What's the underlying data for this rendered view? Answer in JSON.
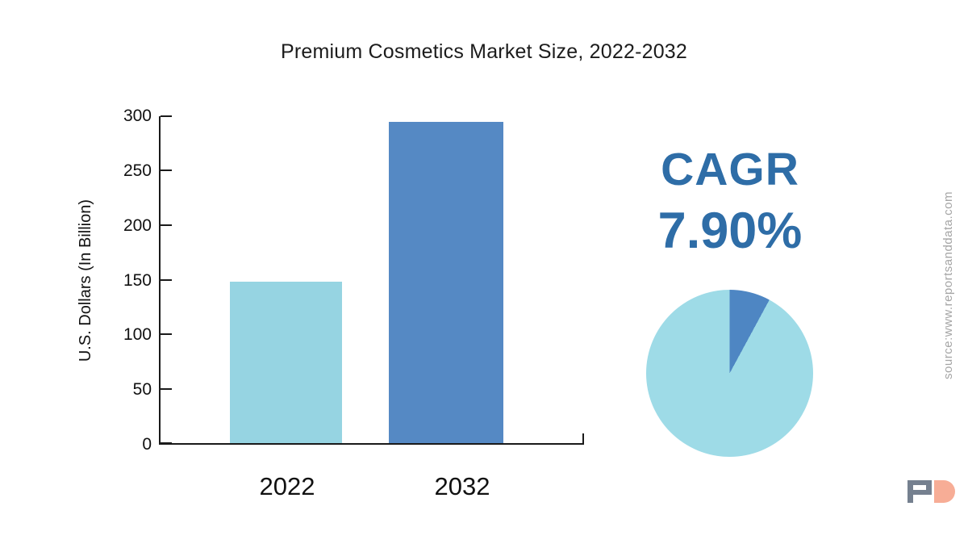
{
  "title": "Premium Cosmetics Market Size, 2022-2032",
  "chart_data": {
    "type": "bar",
    "title": "Premium Cosmetics Market Size, 2022-2032",
    "categories": [
      "2022",
      "2032"
    ],
    "values": [
      148,
      295
    ],
    "bar_colors": [
      "#96d4e2",
      "#5589c4"
    ],
    "xlabel": "",
    "ylabel": "U.S. Dollars (In Billion)",
    "yticks": [
      0,
      50,
      100,
      150,
      200,
      250,
      300
    ],
    "ylim": [
      0,
      300
    ],
    "grid": false,
    "legend": "none"
  },
  "cagr": {
    "label": "CAGR",
    "value_text": "7.90%",
    "percent": 7.9,
    "text_color": "#2e6da7"
  },
  "pie": {
    "type": "pie",
    "slice_percent": 7.9,
    "remainder_percent": 92.1,
    "slice_color": "#4e86c3",
    "remainder_color": "#9edbe7",
    "start_angle_deg": 0
  },
  "source": {
    "text": "source:www.reportsanddata.com"
  },
  "logo": {
    "letters": "RD",
    "r_color": "#75808f",
    "d_color": "#f7ad96"
  },
  "colors": {
    "axis": "#1a1a1a",
    "text": "#111111",
    "source_text": "#a5a5a5",
    "background": "#ffffff"
  }
}
